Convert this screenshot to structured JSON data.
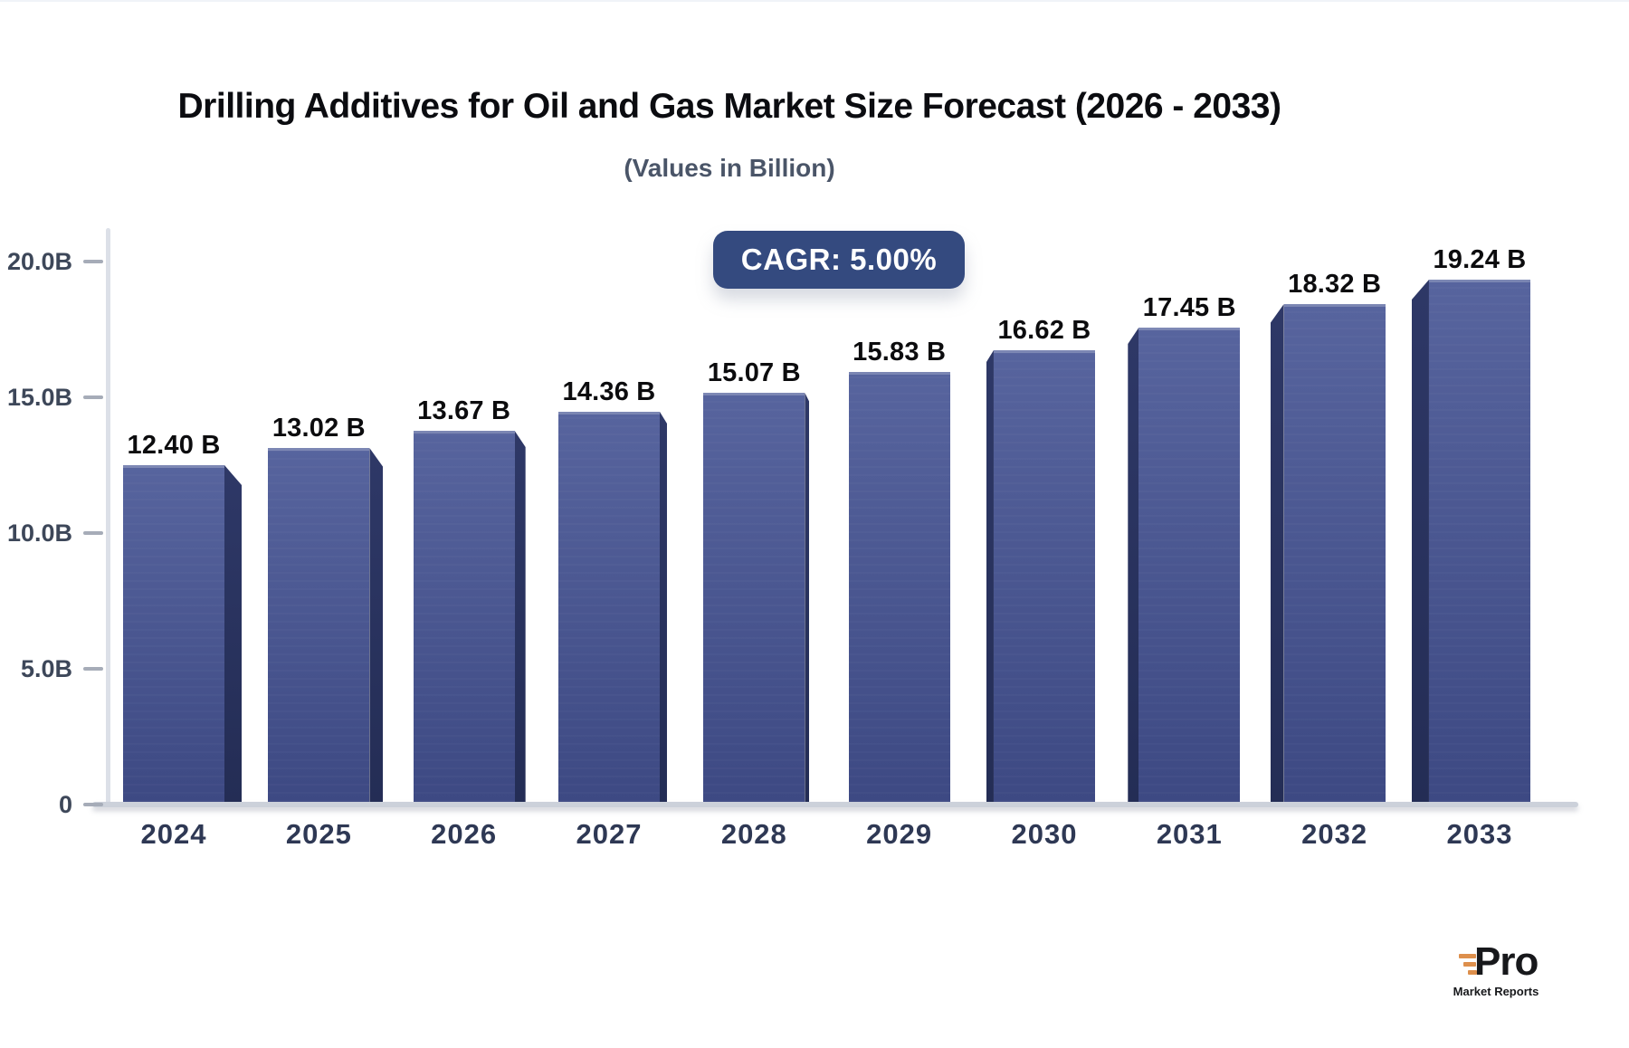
{
  "page": {
    "title": "Drilling Additives for Oil and Gas Market Size Forecast (2026 - 2033)",
    "subtitle": "(Values in Billion)"
  },
  "cagr_badge": {
    "label": "CAGR: 5.00%",
    "bg_color": "#344a7f",
    "text_color": "#ffffff"
  },
  "chart_data": {
    "type": "bar",
    "title": "Drilling Additives for Oil and Gas Market Size Forecast (2026 - 2033)",
    "subtitle": "(Values in Billion)",
    "categories": [
      "2024",
      "2025",
      "2026",
      "2027",
      "2028",
      "2029",
      "2030",
      "2031",
      "2032",
      "2033"
    ],
    "values": [
      12.4,
      13.02,
      13.67,
      14.36,
      15.07,
      15.83,
      16.62,
      17.45,
      18.32,
      19.24
    ],
    "value_labels": [
      "12.40 B",
      "13.02 B",
      "13.67 B",
      "14.36 B",
      "15.07 B",
      "15.83 B",
      "16.62 B",
      "17.45 B",
      "18.32 B",
      "19.24 B"
    ],
    "ylim": [
      0,
      20
    ],
    "yticks": [
      {
        "value": 0,
        "label": "0"
      },
      {
        "value": 5,
        "label": "5.0B"
      },
      {
        "value": 10,
        "label": "10.0B"
      },
      {
        "value": 15,
        "label": "15.0B"
      },
      {
        "value": 20,
        "label": "20.0B"
      }
    ],
    "grid": false,
    "legend": false
  },
  "colors": {
    "bar_face_top": "#57649e",
    "bar_face_bottom": "#3d4983",
    "bar_side_top": "#2e3867",
    "bar_side_bottom": "#242d55",
    "axis_line": "#ccd1da",
    "tick_dash": "#a6acb8",
    "ytick_label": "#3d4759",
    "year_label": "#2e3854",
    "value_label": "#0c0c0e"
  },
  "logo": {
    "name": "Pro",
    "subtext": "Market Reports",
    "accent_color": "#dd8f4c"
  }
}
